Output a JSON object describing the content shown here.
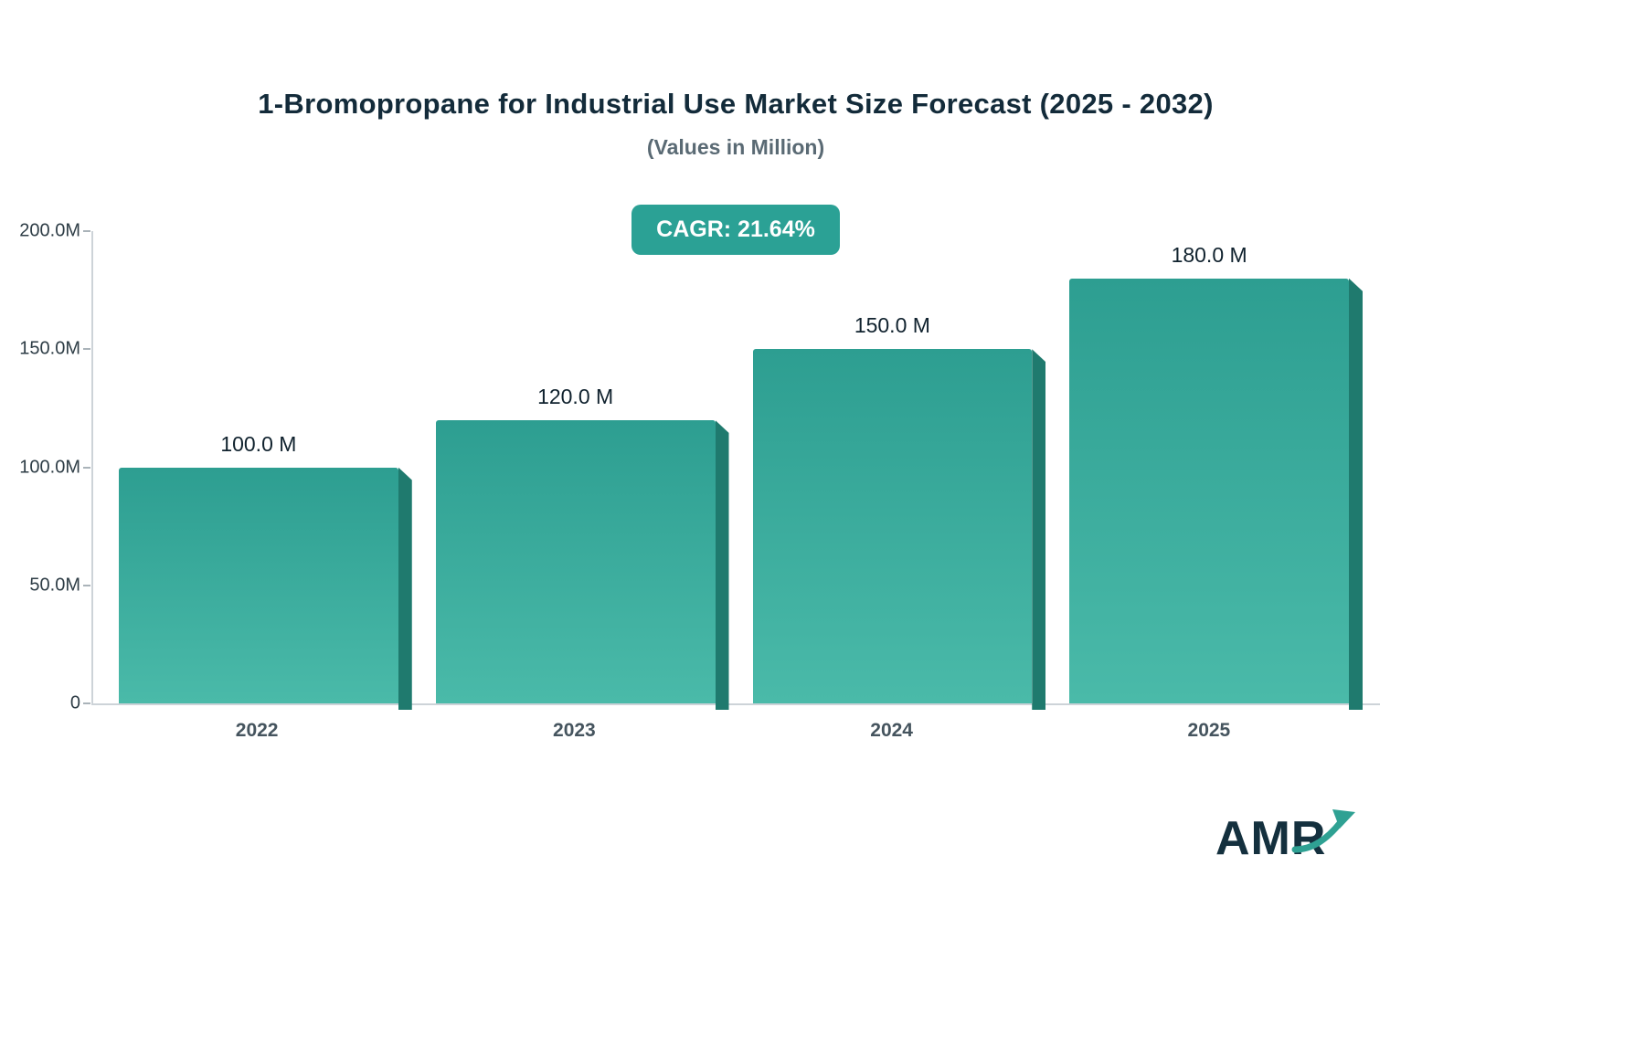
{
  "header": {
    "title": "1-Bromopropane for Industrial Use Market Size Forecast (2025 - 2032)",
    "subtitle": "(Values in Million)"
  },
  "badge": {
    "label": "CAGR: 21.64%"
  },
  "logo": {
    "text": "AMR"
  },
  "colors": {
    "accent": "#2fa193",
    "badge_bg": "#2ba195",
    "bar_top": "#2d9e91",
    "bar_bottom": "#4abaa9",
    "bar_side": "#1f7a6e",
    "title_text": "#132b3a",
    "subtitle_text": "#5a6a74",
    "axis_line": "#cdd3d8",
    "tick_text": "#2e3d46",
    "xlabel_text": "#45545e",
    "value_label_text": "#10222e",
    "logo_text_color": "#14303e"
  },
  "chart_data": {
    "type": "bar",
    "title": "1-Bromopropane for Industrial Use Market Size Forecast (2025 - 2032)",
    "subtitle": "(Values in Million)",
    "annotation": "CAGR: 21.64%",
    "unit": "Million",
    "categories": [
      "2022",
      "2023",
      "2024",
      "2025"
    ],
    "values": [
      100,
      120,
      150,
      180
    ],
    "value_labels": [
      "100.0 M",
      "120.0 M",
      "150.0 M",
      "180.0 M"
    ],
    "ylim": [
      0,
      200
    ],
    "y_ticks": [
      {
        "label": "200.0M",
        "value": 200
      },
      {
        "label": "150.0M",
        "value": 150
      },
      {
        "label": "100.0M",
        "value": 100
      },
      {
        "label": "50.0M",
        "value": 50
      },
      {
        "label": "0",
        "value": 0
      }
    ],
    "grid": false,
    "legend": false
  }
}
